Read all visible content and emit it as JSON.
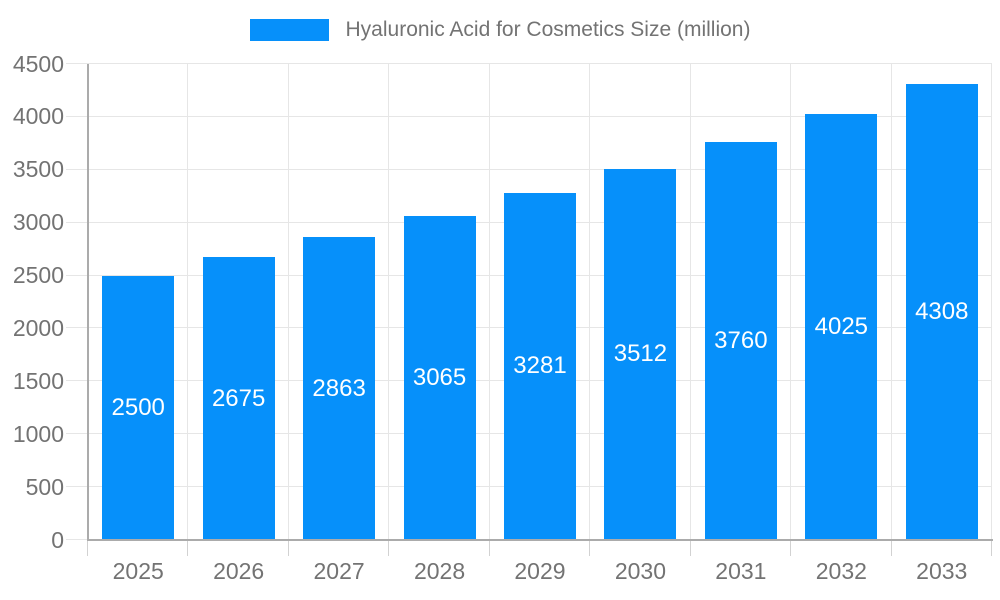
{
  "chart_data": {
    "type": "bar",
    "title": "Hyaluronic Acid for Cosmetics Size (million)",
    "categories": [
      "2025",
      "2026",
      "2027",
      "2028",
      "2029",
      "2030",
      "2031",
      "2032",
      "2033"
    ],
    "values": [
      2500,
      2675,
      2863,
      3065,
      3281,
      3512,
      3760,
      4025,
      4308
    ],
    "xlabel": "",
    "ylabel": "",
    "ylim": [
      0,
      4500
    ],
    "ytick_step": 500,
    "yticks": [
      0,
      500,
      1000,
      1500,
      2000,
      2500,
      3000,
      3500,
      4000,
      4500
    ],
    "grid": true,
    "legend": {
      "position": "top",
      "label": "Hyaluronic Acid for Cosmetics Size (million)",
      "swatch_color": "#0690FA"
    },
    "bar_color": "#0690FA",
    "value_label_color": "#FFFFFF"
  },
  "colors": {
    "background": "#FFFFFF",
    "axis_text": "#737373",
    "grid_line": "#E6E6E6",
    "tick_line": "#D2D2D2",
    "axis_line": "#ABABAB"
  }
}
